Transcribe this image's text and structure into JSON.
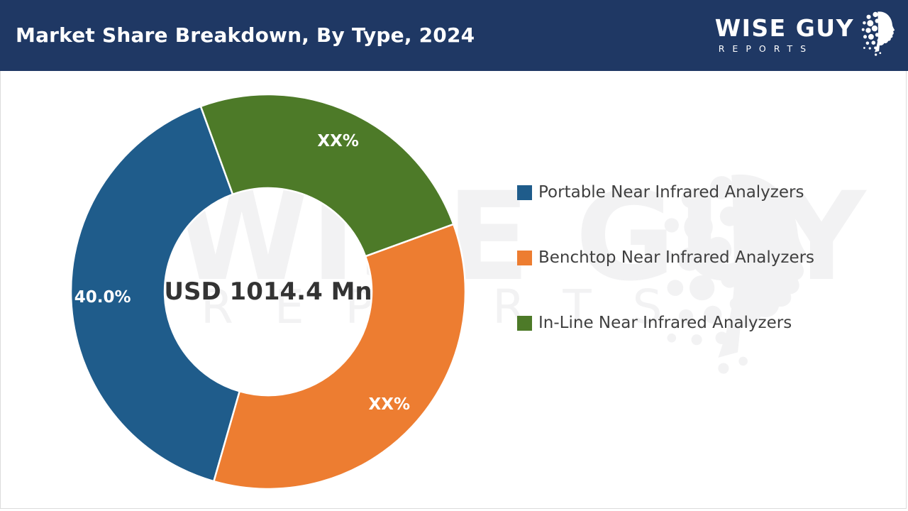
{
  "header": {
    "title": "Market Share Breakdown, By Type, 2024",
    "logo": {
      "line1": "WISE GUY",
      "line2": "REPORTS"
    }
  },
  "chart_data": {
    "type": "pie",
    "variant": "donut",
    "title": "Market Share Breakdown, By Type, 2024",
    "center_label": "USD 1014.4 Mn",
    "start_angle_deg": 110,
    "direction": "counterclockwise",
    "inner_radius_ratio": 0.525,
    "label_radius_ratio": 0.84,
    "categories": [
      "Portable Near Infrared Analyzers",
      "Benchtop Near Infrared Analyzers",
      "In-Line Near Infrared Analyzers"
    ],
    "values": [
      40.0,
      35.0,
      25.0
    ],
    "slice_labels": [
      "40.0%",
      "XX%",
      "XX%"
    ],
    "colors": [
      "#1F5C8B",
      "#ED7D31",
      "#4D7A28"
    ],
    "legend_position": "right"
  },
  "legend": {
    "items": [
      {
        "label": "Portable Near Infrared Analyzers",
        "color": "#1F5C8B"
      },
      {
        "label": "Benchtop Near Infrared Analyzers",
        "color": "#ED7D31"
      },
      {
        "label": "In-Line Near Infrared Analyzers",
        "color": "#4D7A28"
      }
    ]
  },
  "watermark": {
    "line1": "WISE GUY",
    "line2": "REPORTS"
  },
  "colors": {
    "header_bg": "#1F3864",
    "page_bg": "#FFFFFF",
    "center_text": "#333333",
    "legend_text": "#3F3F3F",
    "slice_label_text": "#FFFFFF",
    "watermark": "#F2F2F3",
    "border": "#DCDCDC"
  }
}
